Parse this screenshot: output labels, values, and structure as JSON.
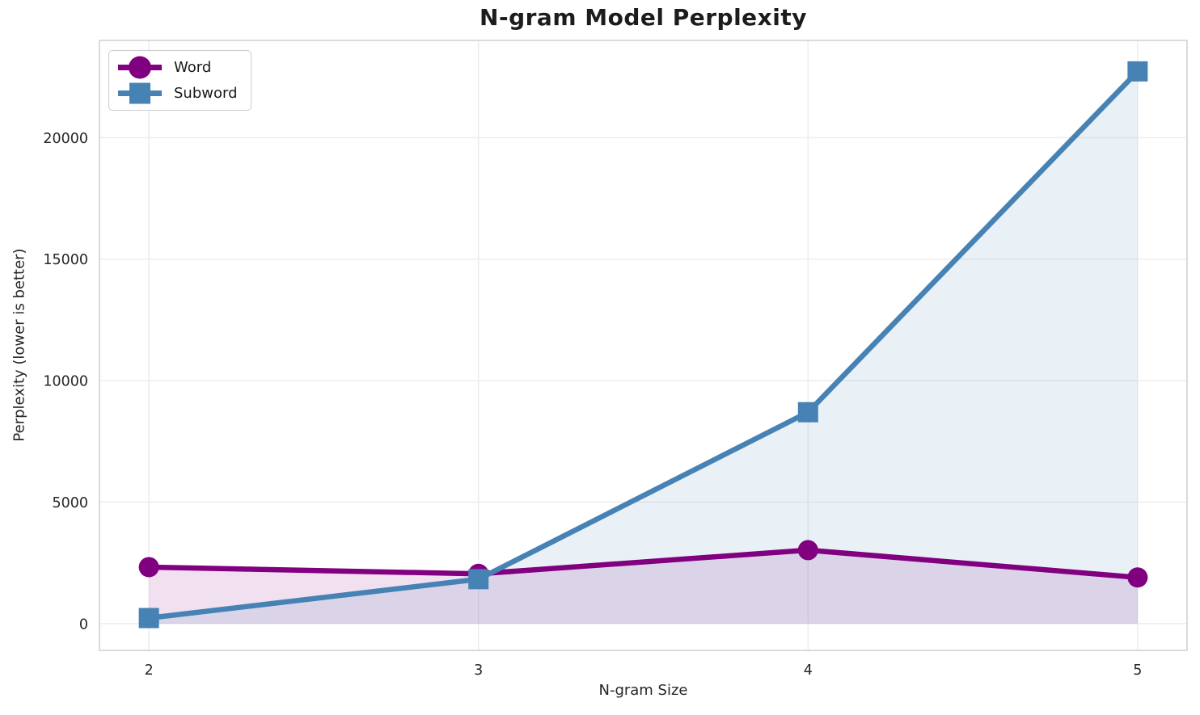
{
  "chart_data": {
    "type": "line",
    "title": "N-gram Model Perplexity",
    "xlabel": "N-gram Size",
    "ylabel": "Perplexity (lower is better)",
    "x": [
      2,
      3,
      4,
      5
    ],
    "series": [
      {
        "name": "Word",
        "color": "#800080",
        "marker": "circle",
        "values": [
          2325,
          2050,
          3025,
          1900
        ],
        "fill_to_zero": true
      },
      {
        "name": "Subword",
        "color": "#4682B4",
        "marker": "square",
        "values": [
          230,
          1830,
          8700,
          22725
        ],
        "fill_to_zero": true
      }
    ],
    "xticks": [
      2,
      3,
      4,
      5
    ],
    "yticks": [
      0,
      5000,
      10000,
      15000,
      20000
    ],
    "xlim": [
      1.85,
      5.15
    ],
    "ylim": [
      -1100,
      24000
    ],
    "grid": true,
    "legend_position": "upper left",
    "fill_opacity": 0.12,
    "line_width": 6.5,
    "marker_size": 25,
    "colors": {
      "background": "#ffffff",
      "grid": "#ededed",
      "spine": "#d2d2d2",
      "tick_text": "#262626",
      "title_text": "#1c1c1c"
    }
  }
}
